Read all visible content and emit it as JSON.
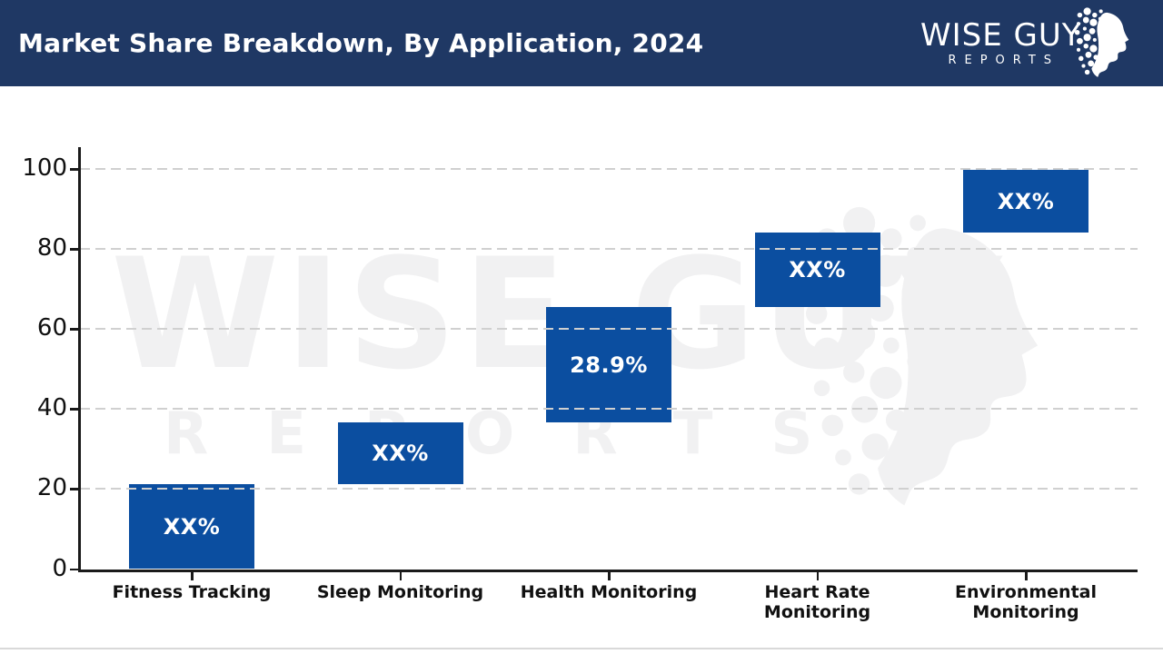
{
  "header": {
    "title": "Market Share Breakdown, By Application, 2024",
    "logo": {
      "line1": "WISE GUY",
      "line2": "REPORTS"
    }
  },
  "watermark": {
    "line1": "WISE GUY",
    "line2": "REPORTS"
  },
  "colors": {
    "header_bg": "#1f3864",
    "bar_blue": "#0b4ea0",
    "grid": "#d0d0d0",
    "axis": "#1a1a1a",
    "watermark": "#f1f1f2",
    "bar_label": "#ffffff"
  },
  "chart_data": {
    "type": "bar",
    "subtype": "waterfall-floating-bars",
    "title": "Market Share Breakdown, By Application, 2024",
    "categories": [
      "Fitness Tracking",
      "Sleep Monitoring",
      "Health Monitoring",
      "Heart Rate Monitoring",
      "Environmental Monitoring"
    ],
    "category_label_lines": [
      [
        "Fitness Tracking"
      ],
      [
        "Sleep Monitoring"
      ],
      [
        "Health Monitoring"
      ],
      [
        "Heart Rate",
        "Monitoring"
      ],
      [
        "Environmental",
        "Monitoring"
      ]
    ],
    "series": [
      {
        "name": "Market share (%)",
        "bar_ranges": [
          [
            0,
            21.2
          ],
          [
            21.2,
            36.6
          ],
          [
            36.6,
            65.5
          ],
          [
            65.5,
            84.0
          ],
          [
            84.0,
            99.8
          ]
        ],
        "bar_labels": [
          "XX%",
          "XX%",
          "28.9%",
          "XX%",
          "XX%"
        ]
      }
    ],
    "yticks": [
      0,
      20,
      40,
      60,
      80,
      100
    ],
    "ylim": [
      0,
      105
    ],
    "xlabel": "",
    "ylabel": "",
    "legend": "none",
    "grid": "horizontal dashed, drawn over bars"
  }
}
